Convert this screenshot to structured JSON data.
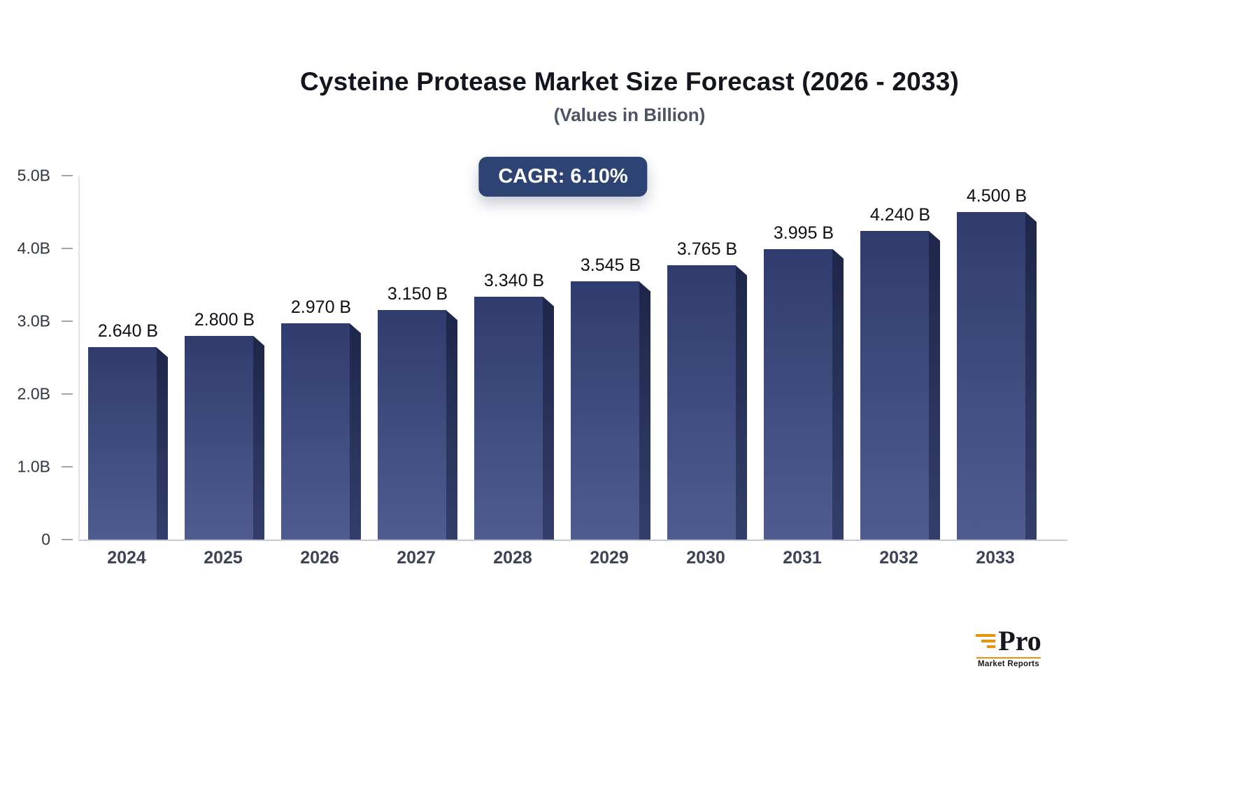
{
  "header": {
    "title": "Cysteine Protease Market Size Forecast (2026 - 2033)",
    "subtitle": "(Values in Billion)"
  },
  "badge": {
    "label": "CAGR: 6.10%"
  },
  "chart_data": {
    "type": "bar",
    "title": "Cysteine Protease Market Size Forecast (2026 - 2033)",
    "subtitle": "(Values in Billion)",
    "xlabel": "",
    "ylabel": "",
    "categories": [
      "2024",
      "2025",
      "2026",
      "2027",
      "2028",
      "2029",
      "2030",
      "2031",
      "2032",
      "2033"
    ],
    "values": [
      2.64,
      2.8,
      2.97,
      3.15,
      3.34,
      3.545,
      3.765,
      3.995,
      4.24,
      4.5
    ],
    "value_labels": [
      "2.640 B",
      "2.800 B",
      "2.970 B",
      "3.150 B",
      "3.340 B",
      "3.545 B",
      "3.765 B",
      "3.995 B",
      "4.240 B",
      "4.500 B"
    ],
    "ylim": [
      0,
      5
    ],
    "yticks": [
      {
        "label": "5.0B",
        "value": 5
      },
      {
        "label": "4.0B",
        "value": 4
      },
      {
        "label": "3.0B",
        "value": 3
      },
      {
        "label": "2.0B",
        "value": 2
      },
      {
        "label": "1.0B",
        "value": 1
      },
      {
        "label": "0",
        "value": 0
      }
    ],
    "grid": "off",
    "legend": "none",
    "cagr": "6.10%"
  },
  "colors": {
    "badge_bg": "#2d4373",
    "badge_text": "#ffffff",
    "bar_front_top": "#303c6d",
    "bar_front_bottom": "#4e5c90",
    "bar_side_top": "#1e2749",
    "bar_side_bottom": "#333e6a",
    "axis_line": "#c7cad1",
    "logo_accent": "#e8930f",
    "logo_text": "#16161f"
  },
  "logo": {
    "name": "Pro",
    "tagline": "Market Reports"
  }
}
